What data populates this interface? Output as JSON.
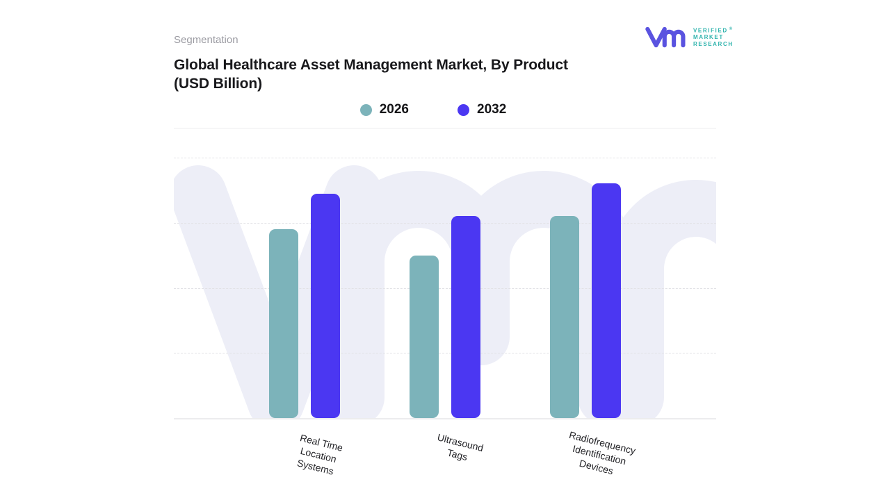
{
  "header": {
    "eyebrow": "Segmentation",
    "title_lines": [
      "Global Healthcare Asset Management Market, By Product",
      "(USD Billion)"
    ]
  },
  "brand": {
    "name_lines": [
      "VERIFIED",
      "MARKET",
      "RESEARCH"
    ],
    "registered_mark": "®",
    "monogram_color": "#5a53e0",
    "wordmark_color": "#2fb3ad"
  },
  "chart_data": {
    "type": "bar",
    "title": "Global Healthcare Asset Management Market, By Product (USD Billion)",
    "categories": [
      "Real Time Location Systems",
      "Ultrasound Tags",
      "Radiofrequency Identification Devices"
    ],
    "category_display_lines": [
      [
        "Real Time",
        "Location",
        "Systems"
      ],
      [
        "Ultrasound",
        "Tags"
      ],
      [
        "Radiofrequency",
        "Identification",
        "Devices"
      ]
    ],
    "series": [
      {
        "name": "2026",
        "color": "#7cb3ba",
        "values": [
          2.9,
          2.5,
          3.1
        ]
      },
      {
        "name": "2032",
        "color": "#4b37f2",
        "values": [
          3.45,
          3.1,
          3.6
        ]
      }
    ],
    "xlabel": "",
    "ylabel": "",
    "ylim": [
      0,
      4
    ],
    "y_axis_labels_visible": false,
    "value_labels_visible": false,
    "grid": {
      "horizontal": true,
      "style": "dashed",
      "divisions": 4
    },
    "legend_position": "top",
    "note": "No numeric axis or value labels are shown in the figure; bar values are estimated in gridline units (1 unit = 1 gridline interval)."
  },
  "watermark": {
    "text": "vmr",
    "color": "#edeef7"
  },
  "colors": {
    "grid": "#e2e2e6",
    "baseline": "#ececee",
    "separator": "#ececee",
    "eyebrow_text": "#9b9ba2",
    "title_text": "#18181b",
    "label_text": "#222226",
    "background": "#ffffff"
  }
}
